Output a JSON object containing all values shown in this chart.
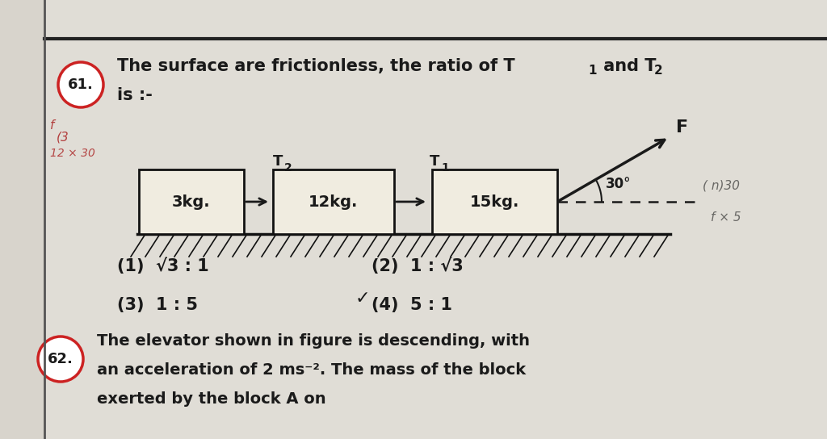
{
  "bg_color": "#d8d4cc",
  "white_panel_color": "#e8e4dc",
  "text_color": "#1a1a1a",
  "box_color": "#f0ece0",
  "box_edge": "#111111",
  "hatch_color": "#111111",
  "ground_color": "#cccccc",
  "red_circle_color": "#cc2222",
  "q61_num": "61.",
  "title_line1": "The surface are frictionless, the ratio of T",
  "title_T1_sub": "1",
  "title_and": " and T",
  "title_T2_sub": "2",
  "title_line2": "is :-",
  "box1_label": "3kg.",
  "box2_label": "12kg.",
  "box3_label": "15kg.",
  "T2_label": "T",
  "T2_sub": "2",
  "T1_label": "T",
  "T1_sub": "1",
  "F_label": "F",
  "angle_label": "30°",
  "opt1": "(1)  √3 : 1",
  "opt2": "(2)  1 : √3",
  "opt3": "(3)  1 : 5",
  "opt4": "(4)  5 : 1",
  "q62_num": "62.",
  "q62_line1": "The elevator shown in figure is descending, with",
  "q62_line2": "an acceleration of 2 ms⁻². The mass of the block",
  "q62_line3": "exerted by the block A on",
  "left_border_color": "#555555",
  "top_line_color": "#222222"
}
